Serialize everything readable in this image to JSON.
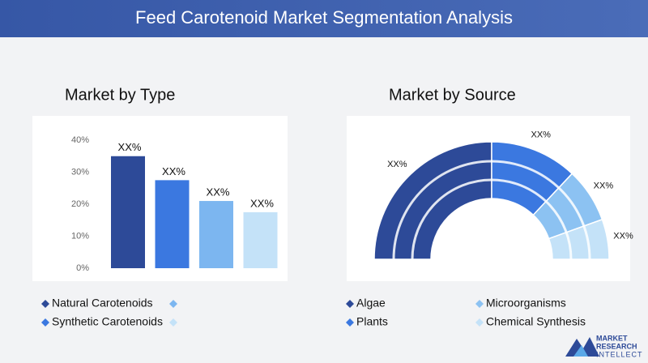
{
  "header": {
    "title": "Feed Carotenoid Market Segmentation Analysis"
  },
  "chart_data": [
    {
      "type": "bar",
      "title": "Market by Type",
      "categories": [
        "Natural Carotenoids",
        "Synthetic Carotenoids",
        null,
        null
      ],
      "values": [
        35,
        27.5,
        21,
        17.5
      ],
      "value_labels": [
        "XX%",
        "XX%",
        "XX%",
        "XX%"
      ],
      "colors": [
        "#2d4a98",
        "#3b78e0",
        "#7cb6f0",
        "#c4e2f8"
      ],
      "ylim": [
        0,
        40
      ],
      "yticks": [
        {
          "value": 0,
          "label": "0%"
        },
        {
          "value": 10,
          "label": "10%"
        },
        {
          "value": 20,
          "label": "20%"
        },
        {
          "value": 30,
          "label": "30%"
        },
        {
          "value": 40,
          "label": "40%"
        }
      ],
      "grid": false
    },
    {
      "type": "donut",
      "title": "Market by Source",
      "categories": [
        "Algae",
        "Plants",
        "Microorganisms",
        "Chemical Synthesis"
      ],
      "values": [
        50,
        24,
        15,
        11
      ],
      "value_labels": [
        "XX%",
        "XX%",
        "XX%",
        "XX%"
      ],
      "colors": [
        "#2d4a98",
        "#3b78e0",
        "#8cc2f2",
        "#c4e2f8"
      ]
    }
  ],
  "logo": {
    "lines": [
      "MARKET",
      "RESEARCH",
      "INTELLECT"
    ]
  }
}
